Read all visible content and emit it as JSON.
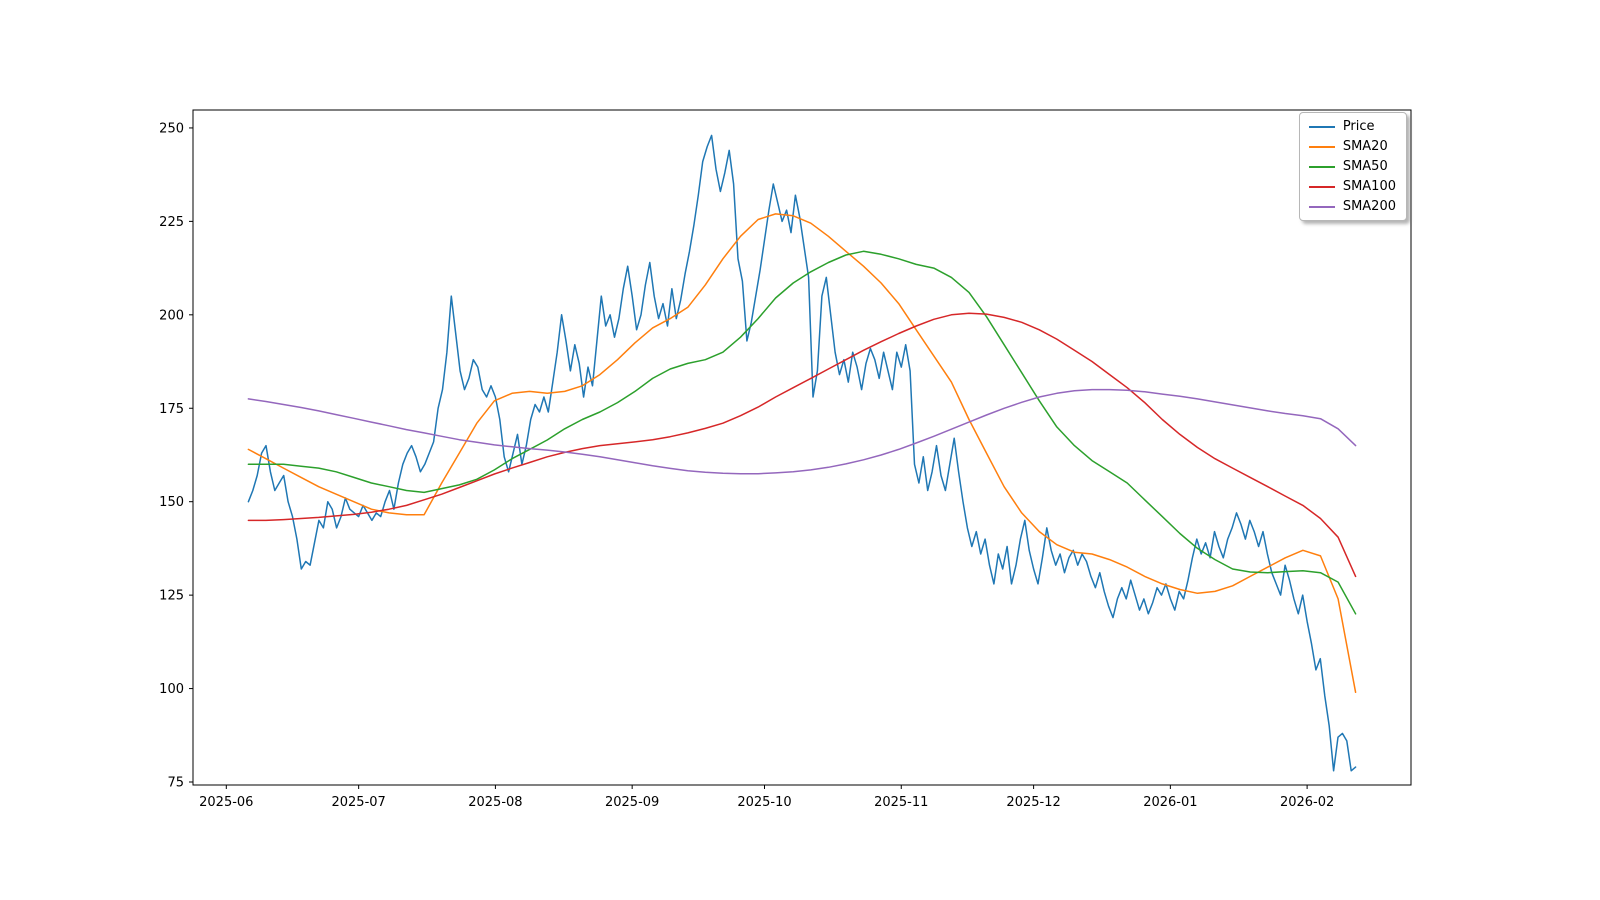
{
  "figure": {
    "background": "#ffffff",
    "axes_background": "#ffffff",
    "spine_color": "#000000",
    "tick_color": "#000000"
  },
  "chart_data": {
    "type": "line",
    "title": "",
    "xlabel": "",
    "ylabel": "",
    "grid": false,
    "legend_position": "upper right",
    "x_start_date": "2025-06-06",
    "x_end_date": "2026-02-12",
    "total_days": 251,
    "xlim_days": [
      -12.55,
      263.55
    ],
    "ylim": [
      74.2,
      254.8
    ],
    "x_tick_labels": [
      "2025-06",
      "2025-07",
      "2025-08",
      "2025-09",
      "2025-10",
      "2025-11",
      "2025-12",
      "2026-01",
      "2026-02"
    ],
    "x_tick_day_offsets": [
      -5,
      25,
      56,
      87,
      117,
      148,
      178,
      209,
      240
    ],
    "y_ticks": [
      75,
      100,
      125,
      150,
      175,
      200,
      225,
      250
    ],
    "y_tick_labels": [
      "75",
      "100",
      "125",
      "150",
      "175",
      "200",
      "225",
      "250"
    ],
    "series": [
      {
        "name": "Price",
        "color": "#1f77b4",
        "values": [
          150,
          153,
          157,
          163,
          165,
          158,
          153,
          155,
          157,
          150,
          146,
          140,
          132,
          134,
          133,
          139,
          145,
          143,
          150,
          148,
          143,
          146,
          151,
          148,
          147,
          146,
          149,
          147,
          145,
          147,
          146,
          150,
          153,
          148,
          155,
          160,
          163,
          165,
          162,
          158,
          160,
          163,
          166,
          175,
          180,
          190,
          205,
          195,
          185,
          180,
          183,
          188,
          186,
          180,
          178,
          181,
          178,
          172,
          162,
          158,
          163,
          168,
          160,
          165,
          172,
          176,
          174,
          178,
          174,
          182,
          190,
          200,
          193,
          185,
          192,
          187,
          178,
          186,
          181,
          193,
          205,
          197,
          200,
          194,
          199,
          207,
          213,
          205,
          196,
          200,
          208,
          214,
          205,
          199,
          203,
          197,
          207,
          199,
          204,
          211,
          217,
          224,
          232,
          241,
          245,
          248,
          239,
          233,
          238,
          244,
          235,
          215,
          209,
          193,
          198,
          205,
          212,
          220,
          228,
          235,
          230,
          225,
          228,
          222,
          232,
          226,
          218,
          210,
          178,
          185,
          205,
          210,
          200,
          190,
          184,
          188,
          182,
          190,
          186,
          180,
          187,
          191,
          188,
          183,
          190,
          185,
          180,
          190,
          186,
          192,
          185,
          160,
          155,
          162,
          153,
          158,
          165,
          157,
          153,
          160,
          167,
          158,
          150,
          143,
          138,
          142,
          136,
          140,
          133,
          128,
          136,
          132,
          138,
          128,
          133,
          140,
          145,
          137,
          132,
          128,
          135,
          143,
          137,
          133,
          136,
          131,
          135,
          137,
          133,
          136,
          134,
          130,
          127,
          131,
          126,
          122,
          119,
          124,
          127,
          124,
          129,
          125,
          121,
          124,
          120,
          123,
          127,
          125,
          128,
          124,
          121,
          126,
          124,
          129,
          135,
          140,
          136,
          139,
          135,
          142,
          138,
          135,
          140,
          143,
          147,
          144,
          140,
          145,
          142,
          138,
          142,
          136,
          131,
          128,
          125,
          133,
          129,
          124,
          120,
          125,
          118,
          112,
          105,
          108,
          98,
          90,
          78,
          87,
          88,
          86,
          78,
          79
        ]
      },
      {
        "name": "SMA20",
        "color": "#ff7f0e",
        "values": [
          164,
          161.5,
          159,
          156.5,
          154,
          152,
          150,
          148,
          147,
          146.5,
          146.5,
          155,
          163,
          171,
          177,
          179,
          179.5,
          179,
          179.5,
          181,
          184,
          188,
          192.5,
          196.5,
          199,
          202,
          208,
          215,
          221,
          225.5,
          227,
          226.5,
          224.5,
          221,
          217,
          213,
          208.5,
          203,
          196,
          189,
          182,
          172,
          163,
          154,
          147,
          142,
          138.5,
          136.5,
          136,
          134.5,
          132.5,
          130,
          128,
          126.5,
          125.5,
          126,
          127.5,
          130,
          132.5,
          135,
          137,
          135.5,
          124,
          99
        ]
      },
      {
        "name": "SMA50",
        "color": "#2ca02c",
        "values": [
          160,
          160,
          160,
          159.5,
          159,
          158,
          156.5,
          155,
          154,
          153,
          152.5,
          153.5,
          154.5,
          156,
          158.5,
          161.5,
          164,
          166.5,
          169.5,
          172,
          174,
          176.5,
          179.5,
          183,
          185.5,
          187,
          188,
          190,
          194,
          199,
          204.5,
          208.5,
          211.5,
          214,
          216,
          217,
          216.2,
          215,
          213.5,
          212.5,
          210,
          206,
          199.5,
          192,
          184.5,
          177,
          170,
          165,
          161,
          158,
          155,
          150.5,
          146,
          141.5,
          137.5,
          134.5,
          132,
          131.2,
          131,
          131.3,
          131.5,
          131,
          128.5,
          120
        ]
      },
      {
        "name": "SMA100",
        "color": "#d62728",
        "values": [
          145,
          145,
          145.2,
          145.5,
          145.8,
          146.2,
          146.6,
          147.2,
          148,
          149,
          150.5,
          152,
          153.8,
          155.6,
          157.4,
          159,
          160.5,
          162,
          163.2,
          164.2,
          165,
          165.5,
          166,
          166.6,
          167.4,
          168.4,
          169.6,
          171,
          173,
          175.3,
          178,
          180.5,
          183,
          185.5,
          188,
          190.5,
          192.8,
          195,
          197,
          198.8,
          200,
          200.4,
          200.2,
          199.3,
          198,
          196,
          193.5,
          190.5,
          187.5,
          184,
          180.5,
          176.5,
          172,
          168,
          164.5,
          161.5,
          159,
          156.5,
          154,
          151.5,
          149,
          145.5,
          140.5,
          130
        ]
      },
      {
        "name": "SMA200",
        "color": "#9467bd",
        "values": [
          177.5,
          176.8,
          176,
          175.2,
          174.3,
          173.3,
          172.3,
          171.3,
          170.3,
          169.3,
          168.4,
          167.5,
          166.6,
          165.9,
          165.2,
          164.7,
          164.2,
          163.8,
          163.3,
          162.7,
          162,
          161.2,
          160.4,
          159.6,
          158.9,
          158.3,
          157.9,
          157.6,
          157.5,
          157.5,
          157.7,
          158,
          158.5,
          159.2,
          160.1,
          161.2,
          162.5,
          164,
          165.7,
          167.5,
          169.4,
          171.3,
          173.2,
          175,
          176.6,
          178,
          179,
          179.7,
          180,
          180,
          179.8,
          179.4,
          178.8,
          178.2,
          177.5,
          176.7,
          175.9,
          175.1,
          174.3,
          173.6,
          173,
          172.2,
          169.5,
          165
        ]
      }
    ]
  }
}
